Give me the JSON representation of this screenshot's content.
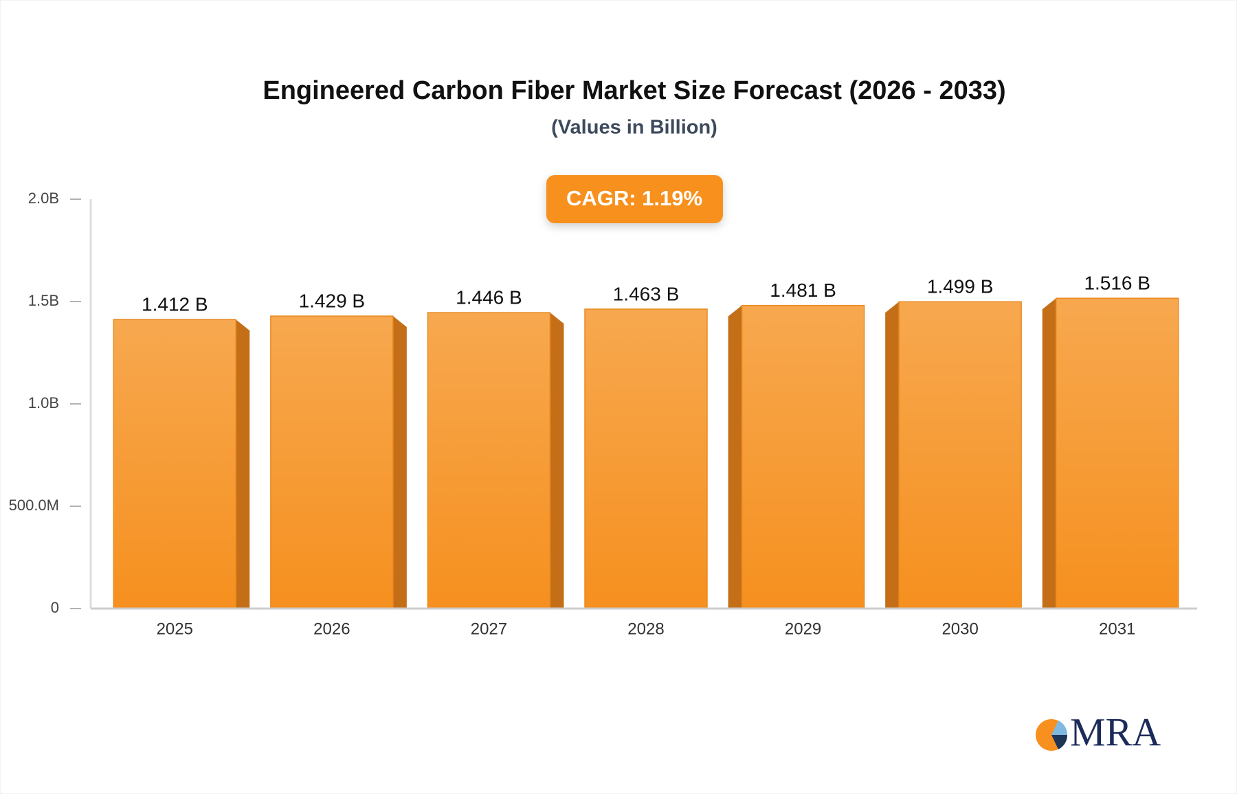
{
  "chart_data": {
    "type": "bar",
    "title": "Engineered Carbon Fiber Market Size Forecast (2026 - 2033)",
    "subtitle": "(Values in Billion)",
    "annotation": "CAGR: 1.19%",
    "logo": "MRA",
    "categories": [
      "2025",
      "2026",
      "2027",
      "2028",
      "2029",
      "2030",
      "2031"
    ],
    "values": [
      1.412,
      1.429,
      1.446,
      1.463,
      1.481,
      1.499,
      1.516
    ],
    "value_labels": [
      "1.412 B",
      "1.429 B",
      "1.446 B",
      "1.463 B",
      "1.481 B",
      "1.499 B",
      "1.516 B"
    ],
    "color": "#f7a043",
    "ylim": [
      0,
      2
    ],
    "yticks": [
      0,
      {
        "value": 0.5,
        "label": "500.0M"
      },
      {
        "value": 1,
        "label": "1.0B"
      },
      {
        "value": 1.5,
        "label": "1.5B"
      },
      {
        "value": 2,
        "label": "2.0B"
      }
    ]
  }
}
